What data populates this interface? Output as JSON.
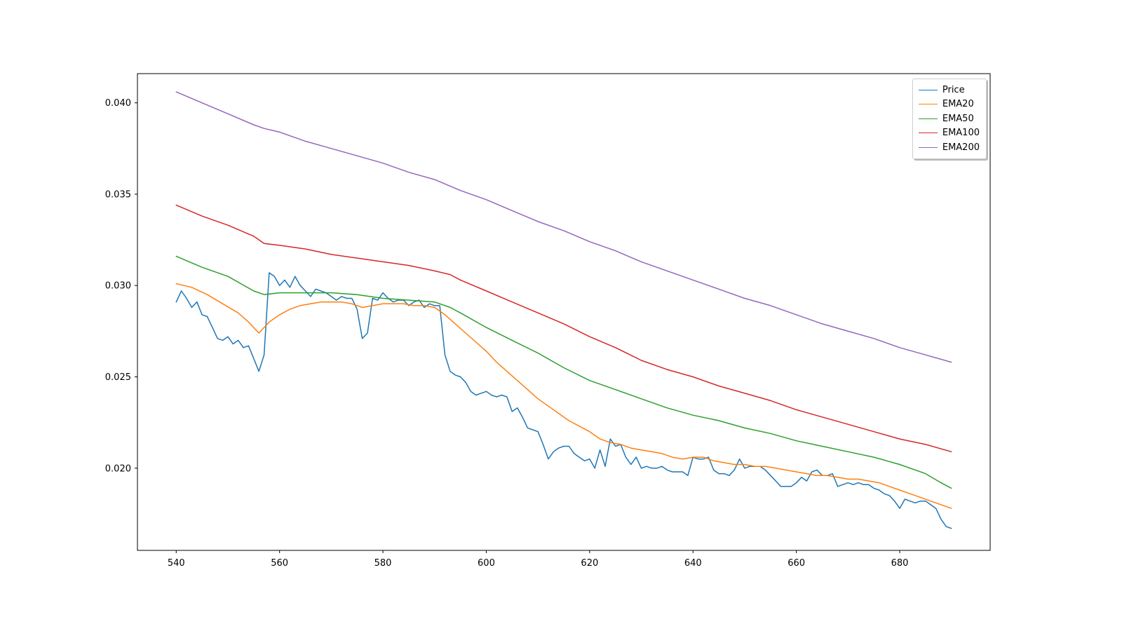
{
  "figure": {
    "background": "#ffffff"
  },
  "chart_data": {
    "type": "line",
    "title": "",
    "xlabel": "",
    "ylabel": "",
    "grid": false,
    "legend_position": "upper right",
    "xlim": [
      532.5,
      697.5
    ],
    "ylim": [
      0.0155,
      0.0416
    ],
    "x_ticks": [
      540,
      560,
      580,
      600,
      620,
      640,
      660,
      680
    ],
    "y_ticks": [
      0.02,
      0.025,
      0.03,
      0.035,
      0.04
    ],
    "series": [
      {
        "name": "Price",
        "color": "#1f77b4",
        "x0": 540,
        "dx": 1,
        "y": [
          0.0291,
          0.0297,
          0.0293,
          0.0288,
          0.0291,
          0.0284,
          0.0283,
          0.0277,
          0.0271,
          0.027,
          0.0272,
          0.0268,
          0.027,
          0.0266,
          0.0267,
          0.026,
          0.0253,
          0.0262,
          0.0307,
          0.0305,
          0.03,
          0.0303,
          0.0299,
          0.0305,
          0.03,
          0.0297,
          0.0294,
          0.0298,
          0.0297,
          0.0296,
          0.0294,
          0.0292,
          0.0294,
          0.0293,
          0.0293,
          0.0287,
          0.0271,
          0.0274,
          0.0293,
          0.0292,
          0.0296,
          0.0293,
          0.0291,
          0.0292,
          0.0292,
          0.0289,
          0.0291,
          0.0292,
          0.0288,
          0.029,
          0.0289,
          0.0289,
          0.0262,
          0.0253,
          0.0251,
          0.025,
          0.0247,
          0.0242,
          0.024,
          0.0241,
          0.0242,
          0.024,
          0.0239,
          0.024,
          0.0239,
          0.0231,
          0.0233,
          0.0228,
          0.0222,
          0.0221,
          0.022,
          0.0213,
          0.0205,
          0.0209,
          0.0211,
          0.0212,
          0.0212,
          0.0208,
          0.0206,
          0.0204,
          0.0205,
          0.02,
          0.021,
          0.0201,
          0.0216,
          0.0212,
          0.0213,
          0.0206,
          0.0202,
          0.0206,
          0.02,
          0.0201,
          0.02,
          0.02,
          0.0201,
          0.0199,
          0.0198,
          0.0198,
          0.0198,
          0.0196,
          0.0206,
          0.0205,
          0.0205,
          0.0206,
          0.0199,
          0.0197,
          0.0197,
          0.0196,
          0.0199,
          0.0205,
          0.02,
          0.0201,
          0.0201,
          0.0201,
          0.0199,
          0.0196,
          0.0193,
          0.019,
          0.019,
          0.019,
          0.0192,
          0.0195,
          0.0193,
          0.0198,
          0.0199,
          0.0196,
          0.0196,
          0.0197,
          0.019,
          0.0191,
          0.0192,
          0.0191,
          0.0192,
          0.0191,
          0.0191,
          0.0189,
          0.0188,
          0.0186,
          0.0185,
          0.0182,
          0.0178,
          0.0183,
          0.0182,
          0.0181,
          0.0182,
          0.0182,
          0.018,
          0.0178,
          0.0172,
          0.0168,
          0.0167
        ]
      },
      {
        "name": "EMA20",
        "color": "#ff7f0e",
        "x": [
          540,
          543,
          546,
          549,
          552,
          554,
          556,
          558,
          560,
          562,
          564,
          566,
          568,
          570,
          572,
          574,
          576,
          578,
          580,
          582,
          584,
          586,
          588,
          590,
          592,
          594,
          596,
          598,
          600,
          602,
          604,
          606,
          608,
          610,
          612,
          614,
          616,
          618,
          620,
          622,
          624,
          626,
          628,
          630,
          632,
          634,
          636,
          638,
          640,
          642,
          644,
          646,
          648,
          650,
          652,
          654,
          656,
          658,
          660,
          662,
          664,
          666,
          668,
          670,
          672,
          674,
          676,
          678,
          680,
          682,
          684,
          686,
          688,
          690
        ],
        "y": [
          0.0301,
          0.0299,
          0.0295,
          0.029,
          0.0285,
          0.028,
          0.0274,
          0.028,
          0.0284,
          0.0287,
          0.0289,
          0.029,
          0.0291,
          0.0291,
          0.0291,
          0.029,
          0.0288,
          0.0289,
          0.029,
          0.029,
          0.029,
          0.0289,
          0.0289,
          0.0288,
          0.0284,
          0.0279,
          0.0274,
          0.0269,
          0.0264,
          0.0258,
          0.0253,
          0.0248,
          0.0243,
          0.0238,
          0.0234,
          0.023,
          0.0226,
          0.0223,
          0.022,
          0.0216,
          0.0214,
          0.0213,
          0.0211,
          0.021,
          0.0209,
          0.0208,
          0.0206,
          0.0205,
          0.0206,
          0.0206,
          0.0204,
          0.0203,
          0.0202,
          0.0202,
          0.0201,
          0.0201,
          0.02,
          0.0199,
          0.0198,
          0.0197,
          0.0196,
          0.0196,
          0.0195,
          0.0194,
          0.0194,
          0.0193,
          0.0192,
          0.019,
          0.0188,
          0.0186,
          0.0184,
          0.0182,
          0.018,
          0.0178
        ]
      },
      {
        "name": "EMA50",
        "color": "#2ca02c",
        "x": [
          540,
          545,
          550,
          555,
          557,
          560,
          565,
          570,
          575,
          580,
          585,
          590,
          593,
          595,
          600,
          605,
          610,
          615,
          620,
          625,
          630,
          635,
          640,
          645,
          650,
          655,
          660,
          665,
          670,
          675,
          680,
          685,
          688,
          690
        ],
        "y": [
          0.0316,
          0.031,
          0.0305,
          0.0297,
          0.0295,
          0.0296,
          0.0296,
          0.0296,
          0.0295,
          0.0293,
          0.0292,
          0.0291,
          0.0288,
          0.0285,
          0.0277,
          0.027,
          0.0263,
          0.0255,
          0.0248,
          0.0243,
          0.0238,
          0.0233,
          0.0229,
          0.0226,
          0.0222,
          0.0219,
          0.0215,
          0.0212,
          0.0209,
          0.0206,
          0.0202,
          0.0197,
          0.0192,
          0.0189
        ]
      },
      {
        "name": "EMA100",
        "color": "#d62728",
        "x": [
          540,
          545,
          550,
          555,
          557,
          560,
          565,
          570,
          575,
          580,
          585,
          590,
          593,
          595,
          600,
          605,
          610,
          615,
          620,
          625,
          630,
          635,
          640,
          645,
          650,
          655,
          660,
          665,
          670,
          675,
          680,
          685,
          690
        ],
        "y": [
          0.0344,
          0.0338,
          0.0333,
          0.0327,
          0.0323,
          0.0322,
          0.032,
          0.0317,
          0.0315,
          0.0313,
          0.0311,
          0.0308,
          0.0306,
          0.0303,
          0.0297,
          0.0291,
          0.0285,
          0.0279,
          0.0272,
          0.0266,
          0.0259,
          0.0254,
          0.025,
          0.0245,
          0.0241,
          0.0237,
          0.0232,
          0.0228,
          0.0224,
          0.022,
          0.0216,
          0.0213,
          0.0209
        ]
      },
      {
        "name": "EMA200",
        "color": "#9467bd",
        "x": [
          540,
          545,
          550,
          555,
          557,
          560,
          565,
          570,
          575,
          580,
          585,
          590,
          595,
          600,
          605,
          610,
          615,
          620,
          625,
          630,
          635,
          640,
          645,
          650,
          655,
          660,
          665,
          670,
          675,
          680,
          685,
          690
        ],
        "y": [
          0.0406,
          0.04,
          0.0394,
          0.0388,
          0.0386,
          0.0384,
          0.0379,
          0.0375,
          0.0371,
          0.0367,
          0.0362,
          0.0358,
          0.0352,
          0.0347,
          0.0341,
          0.0335,
          0.033,
          0.0324,
          0.0319,
          0.0313,
          0.0308,
          0.0303,
          0.0298,
          0.0293,
          0.0289,
          0.0284,
          0.0279,
          0.0275,
          0.0271,
          0.0266,
          0.0262,
          0.0258
        ]
      }
    ]
  }
}
